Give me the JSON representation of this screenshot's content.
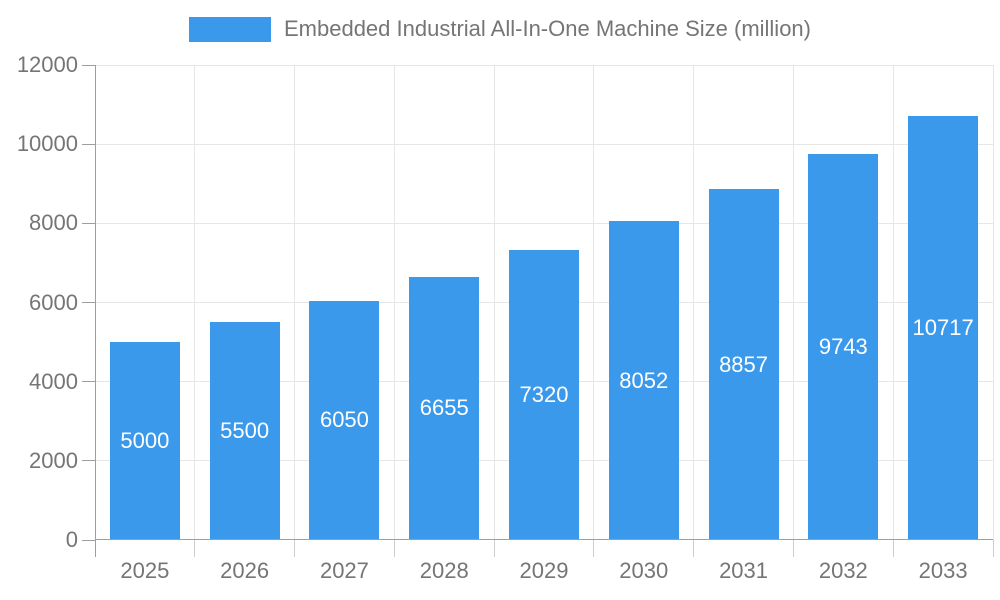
{
  "chart_data": {
    "type": "bar",
    "title": "Embedded Industrial All-In-One Machine Size (million)",
    "legend": [
      "Embedded Industrial All-In-One Machine Size (million)"
    ],
    "legend_position": "top",
    "categories": [
      "2025",
      "2026",
      "2027",
      "2028",
      "2029",
      "2030",
      "2031",
      "2032",
      "2033"
    ],
    "values": [
      5000,
      5500,
      6050,
      6655,
      7320,
      8052,
      8857,
      9743,
      10717
    ],
    "xlabel": "",
    "ylabel": "",
    "ylim": [
      0,
      12000
    ],
    "y_ticks": [
      0,
      2000,
      4000,
      6000,
      8000,
      10000,
      12000
    ],
    "grid": true,
    "value_labels_inside_bars": true,
    "colors": {
      "bar": "#3B99EC",
      "grid_line": "#E6E6E6",
      "axis_line": "#9E9E9E",
      "tick_line": "#CCCCCC",
      "axis_text": "#757575",
      "value_label": "#FFFFFF",
      "background": "#FFFFFF"
    }
  }
}
